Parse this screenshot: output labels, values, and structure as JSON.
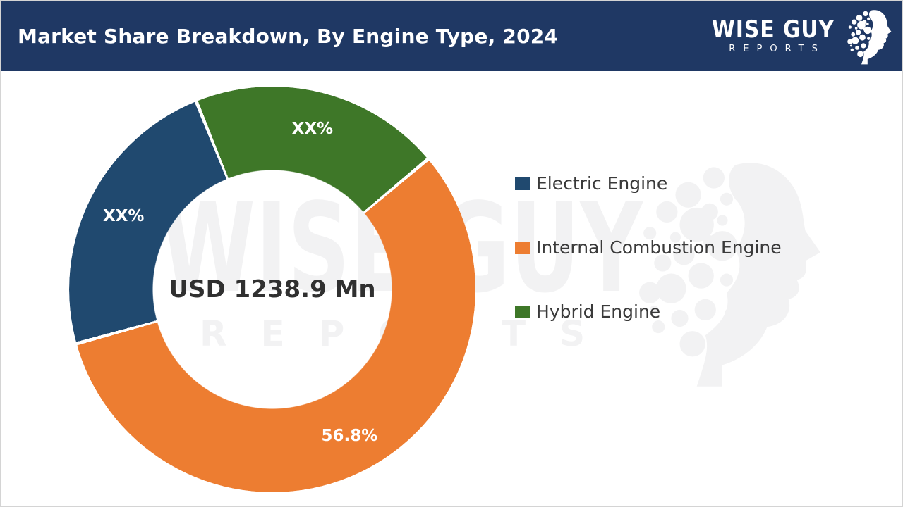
{
  "header": {
    "title": "Market Share Breakdown, By Engine Type, 2024",
    "logo": {
      "line1": "WISE GUY",
      "line2": "REPORTS"
    }
  },
  "watermark": {
    "line1": "WISE GUY",
    "line2": "REPORTS"
  },
  "chart_data": {
    "type": "pie",
    "subtype": "donut",
    "title": "Market Share Breakdown, By Engine Type, 2024",
    "center_label": "USD 1238.9 Mn",
    "hole_ratio": 0.59,
    "start_angle_deg": -22,
    "draw_order": [
      2,
      1,
      0
    ],
    "legend_position": "right",
    "segments": [
      {
        "label": "Electric Engine",
        "display_value": "XX%",
        "approx_pct": 23.2,
        "color": "#20496f"
      },
      {
        "label": "Internal Combustion Engine",
        "display_value": "56.8%",
        "approx_pct": 56.8,
        "color": "#ed7d31"
      },
      {
        "label": "Hybrid Engine",
        "display_value": "XX%",
        "approx_pct": 20.0,
        "color": "#3e7728"
      }
    ]
  },
  "colors": {
    "header_bg": "#1f3864",
    "text_dark": "#3a3a3a",
    "watermark": "#f2f2f3",
    "border": "#d4d4d4",
    "separator": "#ffffff"
  }
}
